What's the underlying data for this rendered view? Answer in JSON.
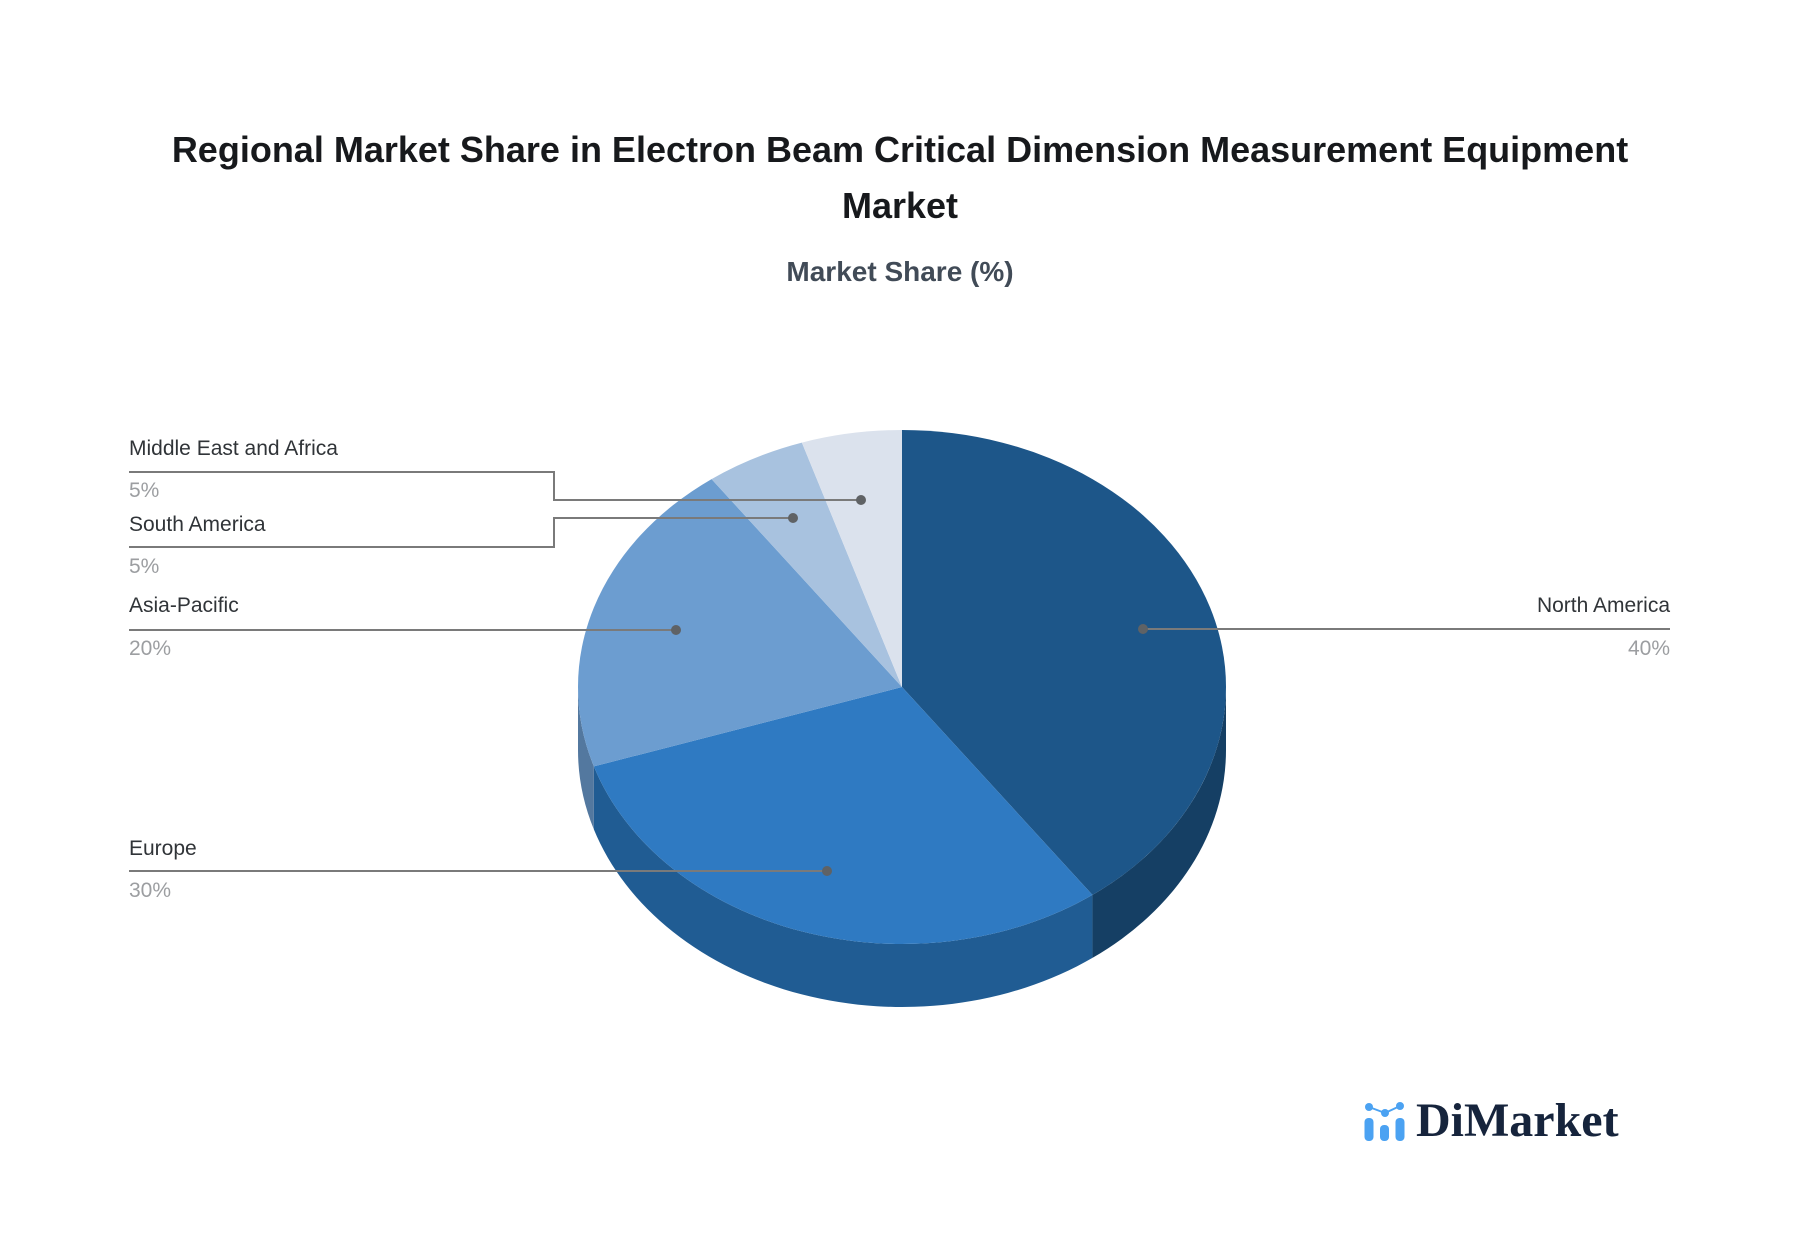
{
  "title": "Regional Market Share in Electron Beam Critical Dimension Measurement Equipment Market",
  "subtitle": "Market Share (%)",
  "chart_data": {
    "type": "pie",
    "style": "3d-pie",
    "title": "Regional Market Share in Electron Beam Critical Dimension Measurement Equipment Market",
    "subtitle": "Market Share (%)",
    "unit": "%",
    "start_angle_deg": 0,
    "direction": "clockwise",
    "legend": "none",
    "categories": [
      "North America",
      "Europe",
      "Asia-Pacific",
      "South America",
      "Middle East and Africa"
    ],
    "values": [
      40,
      30,
      20,
      5,
      5
    ],
    "slices": [
      {
        "label": "North America",
        "value": 40,
        "value_label": "40%",
        "color": "#1d5689",
        "side_color": "#153f64"
      },
      {
        "label": "Europe",
        "value": 30,
        "value_label": "30%",
        "color": "#2f7ac2",
        "side_color": "#205c93"
      },
      {
        "label": "Asia-Pacific",
        "value": 20,
        "value_label": "20%",
        "color": "#6c9dd0",
        "side_color": "#53789f"
      },
      {
        "label": "South America",
        "value": 5,
        "value_label": "5%",
        "color": "#a8c2df",
        "side_color": "#7e99b5"
      },
      {
        "label": "Middle East and Africa",
        "value": 5,
        "value_label": "5%",
        "color": "#dbe2ed",
        "side_color": "#aab3c2"
      }
    ],
    "connector_color": "#7a7a7a",
    "dot_color": "#5f6265",
    "label_color": "#303438",
    "value_color": "#9c9ea1"
  },
  "logo": {
    "text": "DiMarket",
    "icon": "bar-chart-logo-icon",
    "icon_color": "#4ba2f2",
    "text_color": "#16243c"
  }
}
